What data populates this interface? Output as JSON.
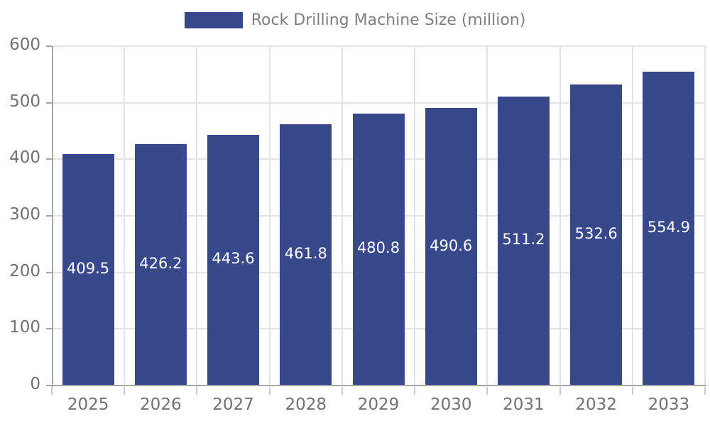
{
  "chart_data": {
    "type": "bar",
    "title": "Rock Drilling Machine Size (million)",
    "legend": {
      "label": "Rock Drilling Machine Size (million)",
      "position": "top-center",
      "swatch_color": "#37498a"
    },
    "categories": [
      "2025",
      "2026",
      "2027",
      "2028",
      "2029",
      "2030",
      "2031",
      "2032",
      "2033"
    ],
    "values": [
      409.5,
      426.2,
      443.6,
      461.8,
      480.8,
      490.6,
      511.2,
      532.6,
      554.9
    ],
    "value_labels": [
      "409.5",
      "426.2",
      "443.6",
      "461.8",
      "480.8",
      "490.6",
      "511.2",
      "532.6",
      "554.9"
    ],
    "xlabel": "",
    "ylabel": "",
    "ylim": [
      0,
      600
    ],
    "ytick_labels": [
      "0",
      "100",
      "200",
      "300",
      "400",
      "500",
      "600"
    ],
    "grid": true,
    "colors": {
      "bar": "#37498a",
      "bar_value_text": "#ffffff",
      "axis": "#a6a6a6",
      "grid": "#e3e3e3",
      "tick_text": "#717171",
      "legend_text": "#7f7f7f",
      "background": "#ffffff"
    }
  }
}
